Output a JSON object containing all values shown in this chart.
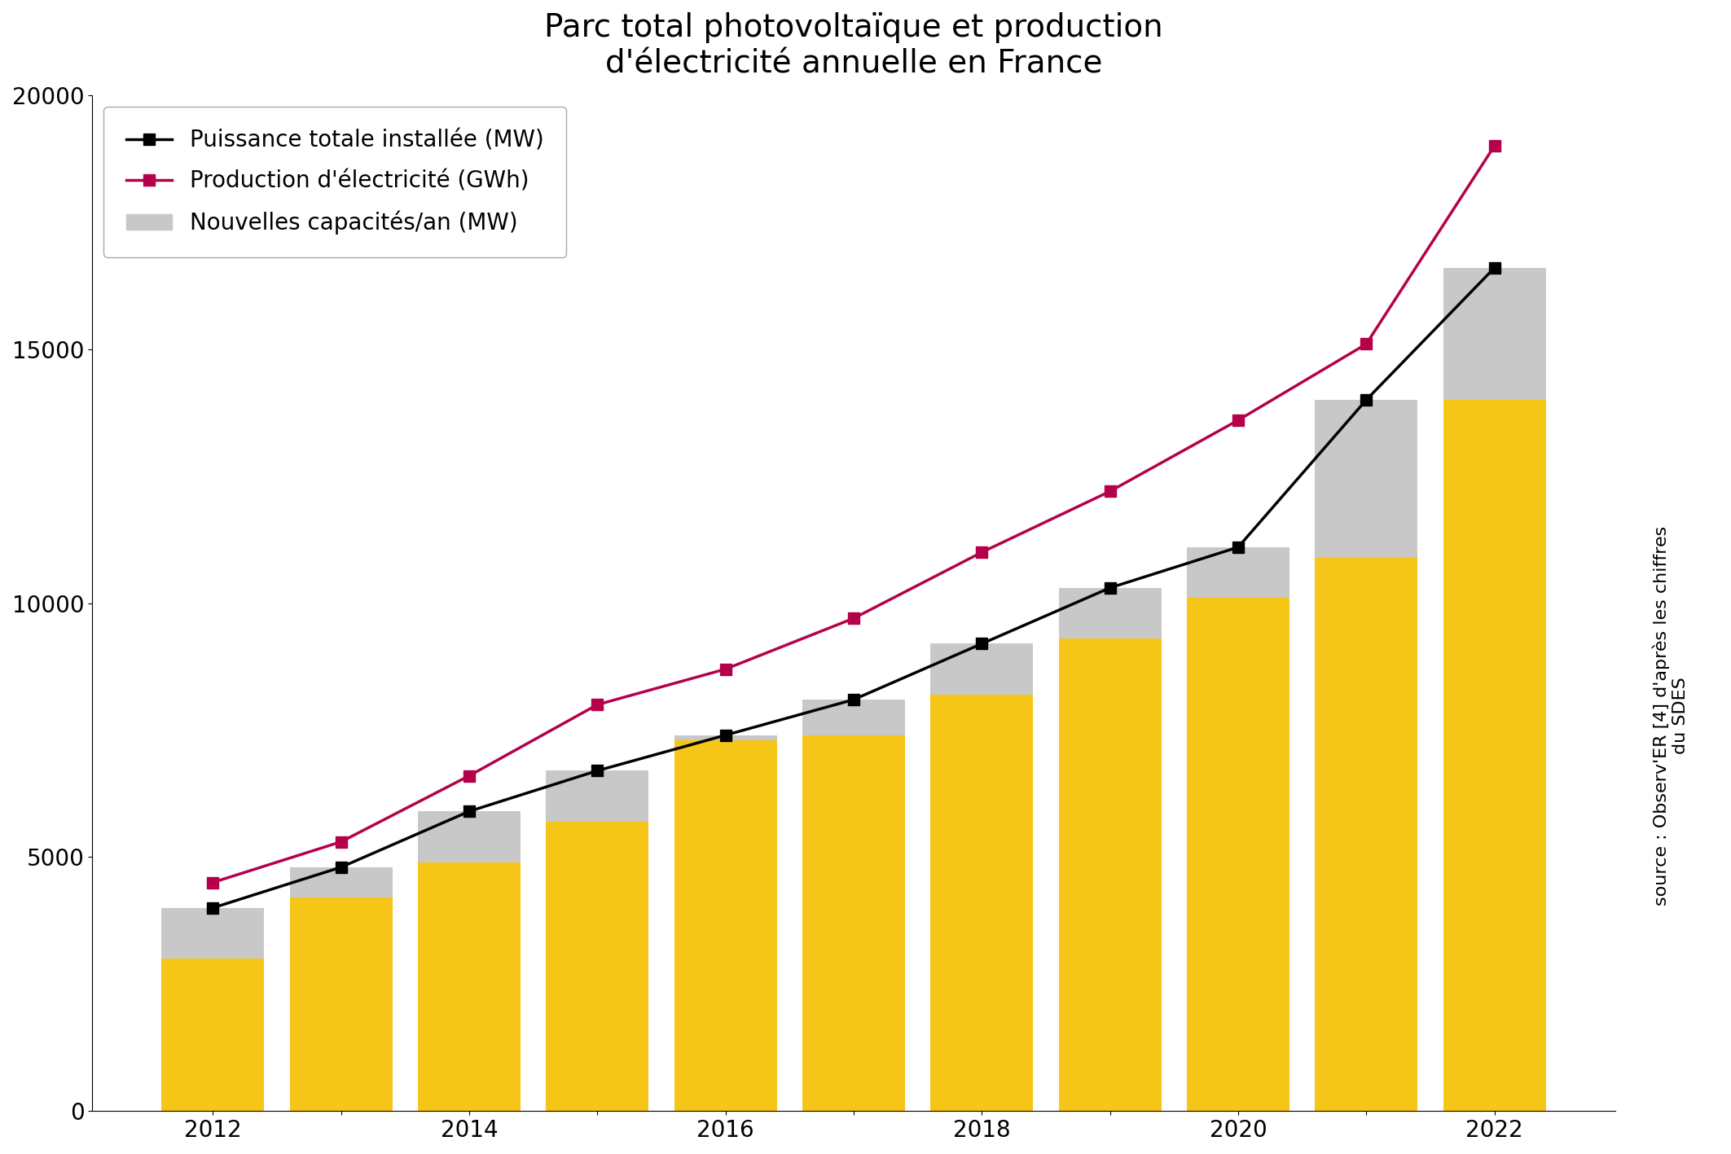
{
  "title": "Parc total photovoltaïque et production\nd'électricité annuelle en France",
  "source_text": "source : Observ'ER [4] d'après les chiffres\ndu SDES",
  "bar_years": [
    2012,
    2013,
    2014,
    2015,
    2016,
    2017,
    2018,
    2019,
    2020,
    2021,
    2022
  ],
  "bar_gold": [
    3000,
    4200,
    4900,
    5700,
    7300,
    7400,
    8200,
    9300,
    10100,
    10900,
    14000
  ],
  "bar_total": [
    4000,
    4800,
    5900,
    6700,
    7400,
    8100,
    9200,
    10300,
    11100,
    14000,
    16600
  ],
  "puissance_line": [
    4000,
    4800,
    5900,
    6700,
    7400,
    8100,
    9200,
    10300,
    11100,
    14000,
    16600
  ],
  "production_line": [
    4500,
    5300,
    6600,
    8000,
    8700,
    9700,
    11000,
    12200,
    13600,
    15100,
    19000
  ],
  "color_gold": "#F5C518",
  "color_gray": "#C8C8C8",
  "color_black": "#000000",
  "color_crimson": "#B5004B",
  "ylim": [
    0,
    20000
  ],
  "yticks": [
    0,
    5000,
    10000,
    15000,
    20000
  ],
  "title_fontsize": 28,
  "legend_fontsize": 20,
  "tick_fontsize": 20,
  "source_fontsize": 16,
  "xtick_labels": [
    "2012",
    "",
    "2014",
    "",
    "2016",
    "",
    "2018",
    "",
    "2020",
    "",
    "2022"
  ],
  "legend_labels": [
    "Puissance totale installée (MW)",
    "Production d'électricité (GWh)",
    "Nouvelles capacités/an (MW)"
  ]
}
